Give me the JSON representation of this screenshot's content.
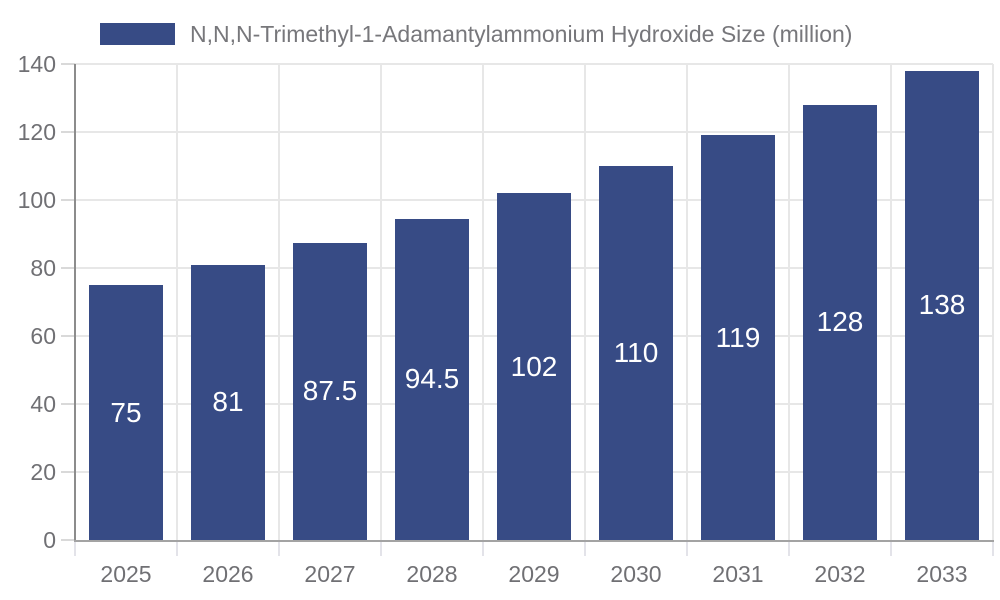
{
  "legend": {
    "label": "N,N,N-Trimethyl-1-Adamantylammonium Hydroxide Size (million)"
  },
  "chart_data": {
    "type": "bar",
    "title": "",
    "series_name": "N,N,N-Trimethyl-1-Adamantylammonium Hydroxide Size (million)",
    "categories": [
      "2025",
      "2026",
      "2027",
      "2028",
      "2029",
      "2030",
      "2031",
      "2032",
      "2033"
    ],
    "values": [
      75,
      81,
      87.5,
      94.5,
      102,
      110,
      119,
      128,
      138
    ],
    "value_labels": [
      "75",
      "81",
      "87.5",
      "94.5",
      "102",
      "110",
      "119",
      "128",
      "138"
    ],
    "xlabel": "",
    "ylabel": "",
    "ylim": [
      0,
      140
    ],
    "yticks": [
      0,
      20,
      40,
      60,
      80,
      100,
      120,
      140
    ],
    "grid": "on",
    "legend_position": "top-left",
    "value_label_position": "inside-center"
  },
  "colors": {
    "bar": "#374B85",
    "grid": "#e7e7e7",
    "y_axis": "#8c8c8c",
    "x_axis": "#a3a3a3",
    "y_tick": "#d9d9d9",
    "x_tick": "#e3e3e9",
    "tick_text": "#707074",
    "legend_text": "#77777b",
    "value_text": "#ffffff",
    "background": "#ffffff"
  }
}
